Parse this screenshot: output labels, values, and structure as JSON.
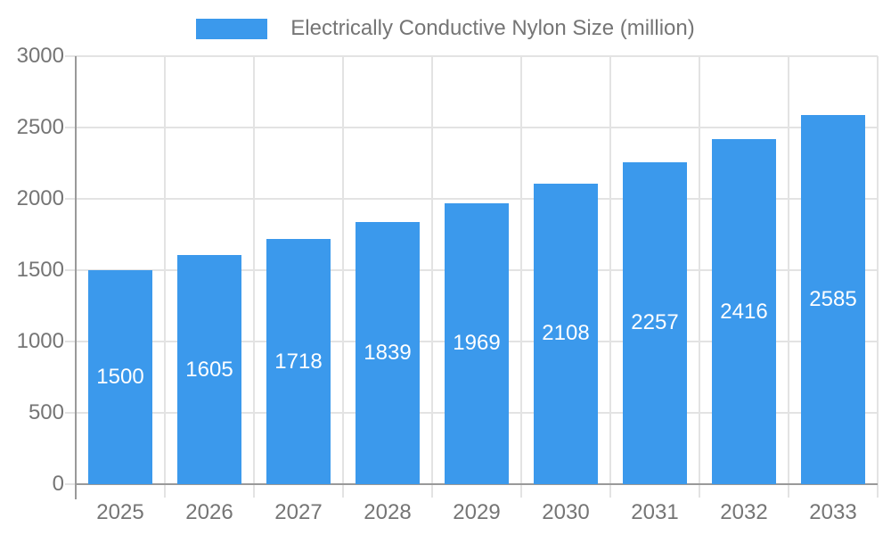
{
  "chart_data": {
    "type": "bar",
    "title": "Electrically Conductive Nylon Size (million)",
    "categories": [
      "2025",
      "2026",
      "2027",
      "2028",
      "2029",
      "2030",
      "2031",
      "2032",
      "2033"
    ],
    "values": [
      1500,
      1605,
      1718,
      1839,
      1969,
      2108,
      2257,
      2416,
      2585
    ],
    "xlabel": "",
    "ylabel": "",
    "ylim": [
      0,
      3000
    ],
    "yticks": [
      0,
      500,
      1000,
      1500,
      2000,
      2500,
      3000
    ],
    "bar_labels_visible": true,
    "legend_position": "top-center",
    "grid": true,
    "colors": {
      "bar": "#3b99ec",
      "bar_label": "#ffffff",
      "axis_text": "#757575",
      "legend_text": "#757575",
      "gridline": "#e3e3e3",
      "axis_line": "#999999",
      "background": "#ffffff"
    }
  }
}
